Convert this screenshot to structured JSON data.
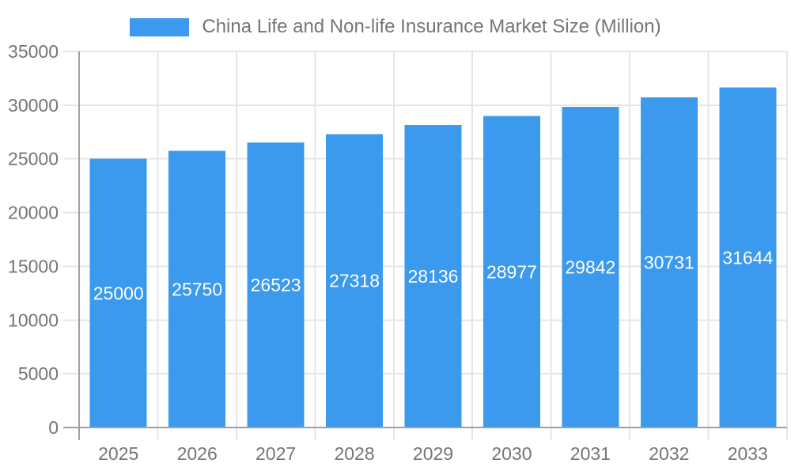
{
  "legend": {
    "label": "China Life and Non-life Insurance Market Size (Million)",
    "swatch_color": "#3B99EE"
  },
  "chart_data": {
    "type": "bar",
    "title": "China Life and Non-life Insurance Market Size (Million)",
    "categories": [
      "2025",
      "2026",
      "2027",
      "2028",
      "2029",
      "2030",
      "2031",
      "2032",
      "2033"
    ],
    "series": [
      {
        "name": "China Life and Non-life Insurance Market Size (Million)",
        "values": [
          25000,
          25750,
          26523,
          27318,
          28136,
          28977,
          29842,
          30731,
          31644
        ]
      }
    ],
    "data_labels": [
      "25000",
      "25750",
      "26523",
      "27318",
      "28136",
      "28977",
      "29842",
      "30731",
      "31644"
    ],
    "xlabel": "",
    "ylabel": "",
    "ylim": [
      0,
      35000
    ],
    "y_ticks": [
      0,
      5000,
      10000,
      15000,
      20000,
      25000,
      30000,
      35000
    ],
    "grid": true,
    "legend_position": "top",
    "colors": {
      "bar": "#3B99EE",
      "data_label": "#ffffff",
      "axis_line": "#A0A0A0",
      "gridline": "#E6E6E6",
      "tick_text": "#757575"
    }
  }
}
